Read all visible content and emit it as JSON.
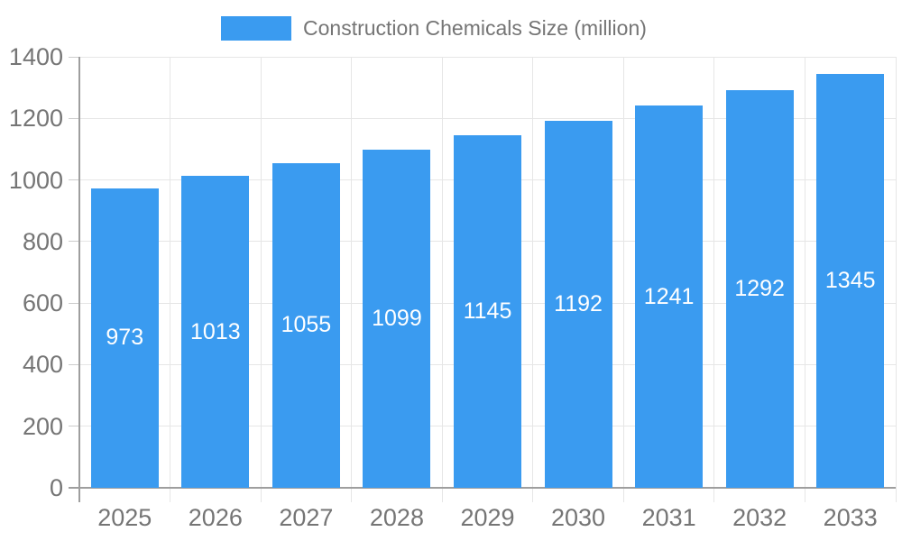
{
  "chart_data": {
    "type": "bar",
    "title": "Construction Chemicals Size (million)",
    "categories": [
      "2025",
      "2026",
      "2027",
      "2028",
      "2029",
      "2030",
      "2031",
      "2032",
      "2033"
    ],
    "values": [
      973,
      1013,
      1055,
      1099,
      1145,
      1192,
      1241,
      1292,
      1345
    ],
    "xlabel": "",
    "ylabel": "",
    "ylim": [
      0,
      1400
    ],
    "yticks": [
      0,
      200,
      400,
      600,
      800,
      1000,
      1200,
      1400
    ],
    "grid": true,
    "legend_position": "top",
    "bar_labels_inside": true,
    "colors": {
      "bar": "#3a9bf0",
      "grid": "#e6e6e6",
      "tickmark": "#cccccc",
      "axis": "#9e9e9e",
      "text": "#757575",
      "bar_label": "#ffffff",
      "background": "#ffffff"
    }
  }
}
